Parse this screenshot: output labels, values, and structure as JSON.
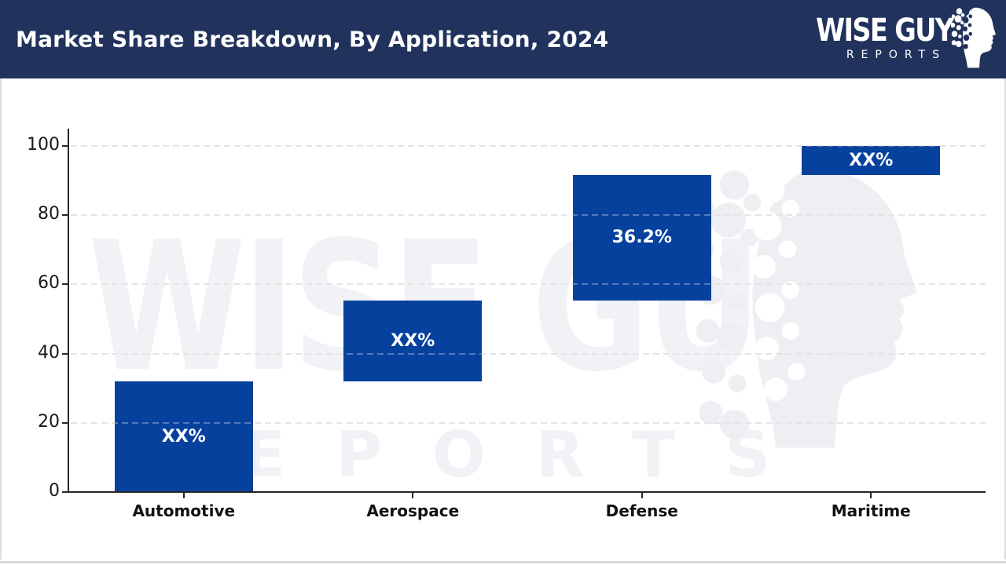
{
  "header": {
    "title": "Market Share Breakdown, By Application, 2024",
    "background_color": "#21325c",
    "logo": {
      "line1": "WISE GUY",
      "line2": "REPORTS"
    }
  },
  "watermark": {
    "line1": "WISE GUY",
    "line2": "REPORTS"
  },
  "chart_data": {
    "type": "bar",
    "subtype": "floating-waterfall",
    "title": "Market Share Breakdown, By Application, 2024",
    "categories": [
      "Automotive",
      "Aerospace",
      "Defense",
      "Maritime"
    ],
    "segments": [
      {
        "category": "Automotive",
        "start": 0,
        "end": 32,
        "label": "XX%"
      },
      {
        "category": "Aerospace",
        "start": 32,
        "end": 55.4,
        "label": "XX%"
      },
      {
        "category": "Defense",
        "start": 55.4,
        "end": 91.6,
        "label": "36.2%"
      },
      {
        "category": "Maritime",
        "start": 91.6,
        "end": 100,
        "label": "XX%"
      }
    ],
    "ylim": [
      0,
      100
    ],
    "yticks": [
      0,
      20,
      40,
      60,
      80,
      100
    ],
    "xlabel": "",
    "ylabel": "",
    "grid": "horizontal-dashed",
    "legend": "none",
    "bar_color": "#07419e",
    "bar_label_color": "#ffffff",
    "axis_color": "#262626",
    "gridline_color": "#dadada"
  }
}
